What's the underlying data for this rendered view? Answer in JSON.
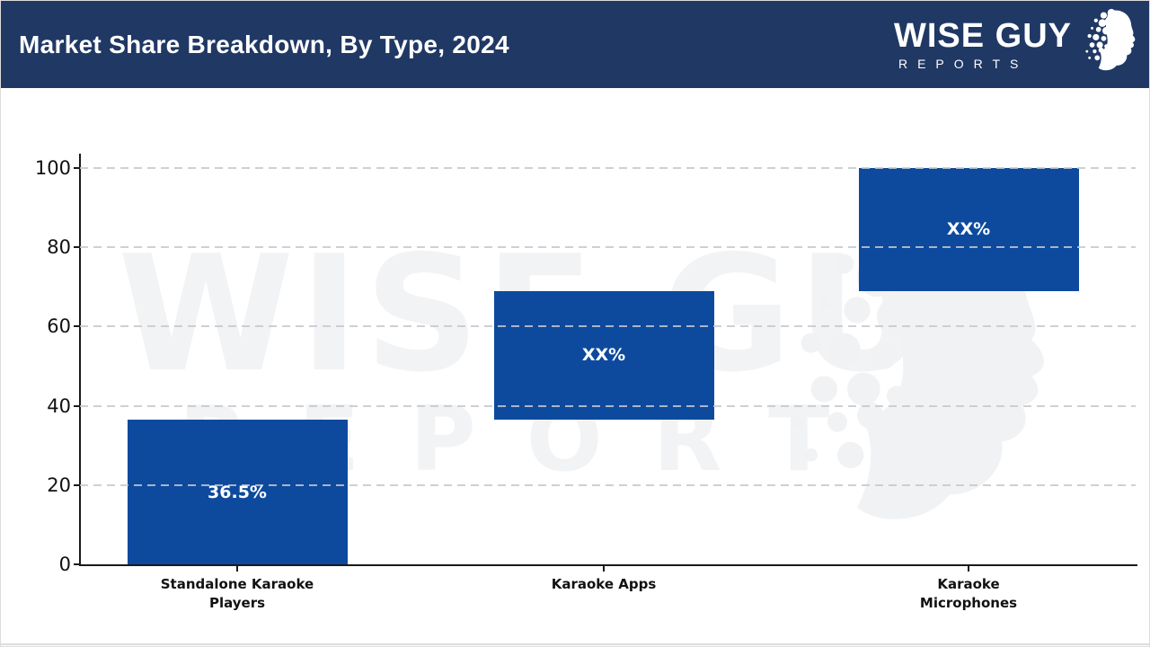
{
  "header": {
    "title": "Market Share Breakdown, By Type, 2024",
    "logo": {
      "line1": "WISE GUY",
      "line2": "REPORTS"
    }
  },
  "watermark": {
    "line1": "WISE GUY",
    "line2": "REPORTS"
  },
  "colors": {
    "header_bg": "#203864",
    "bar": "#0d4a9d",
    "axis": "#1a1a1a",
    "grid": "#c6c8cc",
    "watermark": "#f1f2f4",
    "bar_label": "#ffffff"
  },
  "chart_data": {
    "type": "bar",
    "subtype": "stepped-waterfall",
    "title": "Market Share Breakdown, By Type, 2024",
    "categories": [
      "Standalone Karaoke\nPlayers",
      "Karaoke Apps",
      "Karaoke\nMicrophones"
    ],
    "bars": [
      {
        "category": "Standalone Karaoke\nPlayers",
        "start": 0,
        "end": 36.5,
        "value": 36.5,
        "label": "36.5%"
      },
      {
        "category": "Karaoke Apps",
        "start": 36.5,
        "end": 69,
        "value": null,
        "label": "XX%"
      },
      {
        "category": "Karaoke\nMicrophones",
        "start": 69,
        "end": 100,
        "value": null,
        "label": "XX%"
      }
    ],
    "yticks": [
      0,
      20,
      40,
      60,
      80,
      100
    ],
    "ylim": [
      0,
      103.5
    ],
    "xlabel": "",
    "ylabel": "",
    "grid": "dashed-horizontal",
    "legend": "none",
    "bar_color": "#0d4a9d",
    "label_color": "#ffffff"
  }
}
